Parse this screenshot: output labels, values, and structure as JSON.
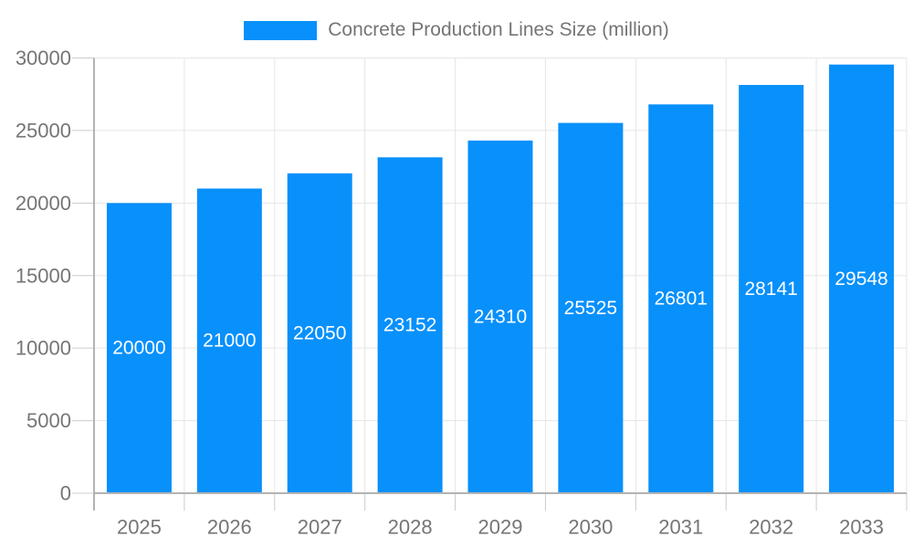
{
  "chart_data": {
    "type": "bar",
    "title": "Concrete Production Lines Size (million)",
    "legend_position": "top",
    "categories": [
      "2025",
      "2026",
      "2027",
      "2028",
      "2029",
      "2030",
      "2031",
      "2032",
      "2033"
    ],
    "series": [
      {
        "name": "Concrete Production Lines Size (million)",
        "values": [
          20000,
          21000,
          22050,
          23152,
          24310,
          25525,
          26801,
          28141,
          29548
        ]
      }
    ],
    "value_labels": [
      "20000",
      "21000",
      "22050",
      "23152",
      "24310",
      "25525",
      "26801",
      "28141",
      "29548"
    ],
    "xlabel": "",
    "ylabel": "",
    "ylim": [
      0,
      30000
    ],
    "yticks": [
      0,
      5000,
      10000,
      15000,
      20000,
      25000,
      30000
    ],
    "grid": true,
    "colors": {
      "bar": "#0890FB",
      "bar_value_text": "#FFFFFF",
      "axis_text": "#757575",
      "gridline": "#E6E6E6",
      "axis_line": "#B3B3B3",
      "tick_line": "#CCCCCC",
      "background": "#FFFFFF"
    }
  }
}
